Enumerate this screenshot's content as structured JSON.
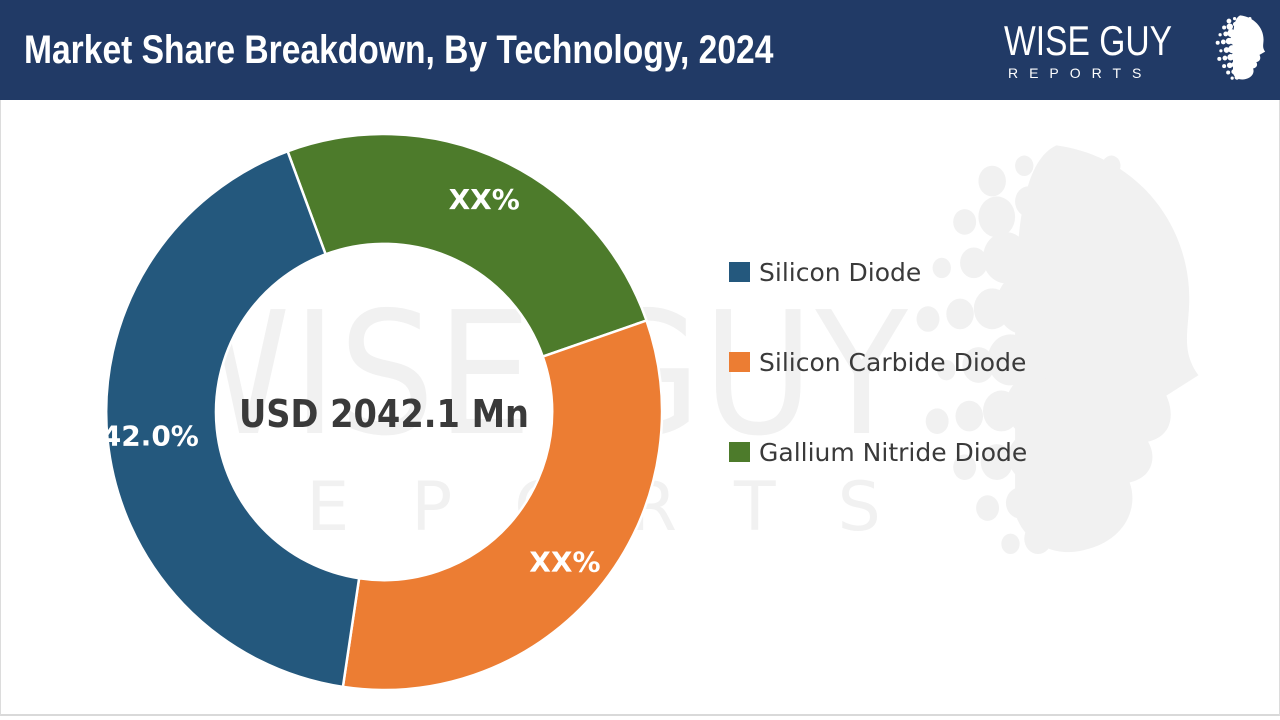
{
  "header": {
    "logo": {
      "line1": "WISE GUY",
      "line2": "REPORTS"
    }
  },
  "watermark": {
    "line1": "WISE GUY",
    "line2": "REPORTS"
  },
  "chart_data": {
    "type": "pie",
    "subtype": "donut",
    "title": "Market Share Breakdown, By Technology, 2024",
    "center_label": "USD 2042.1 Mn",
    "start_angle_deg": 110.3,
    "direction": "clockwise",
    "inner_radius_ratio": 0.605,
    "legend_position": "right",
    "segments": [
      {
        "name": "Gallium Nitride Diode",
        "value_pct": 25.3,
        "display_label": "XX%",
        "color": "#4D7B2B"
      },
      {
        "name": "Silicon Carbide Diode",
        "value_pct": 32.7,
        "display_label": "XX%",
        "color": "#EC7D33"
      },
      {
        "name": "Silicon Diode",
        "value_pct": 42.0,
        "display_label": "42.0%",
        "color": "#24587D"
      }
    ],
    "legend": [
      {
        "label": "Silicon Diode",
        "color": "#24587D"
      },
      {
        "label": "Silicon Carbide Diode",
        "color": "#EC7D33"
      },
      {
        "label": "Gallium Nitride Diode",
        "color": "#4D7B2B"
      }
    ],
    "colors_hex": {
      "header_bg": "#213A66",
      "text_dark": "#3a3a3a",
      "watermark": "#f1f1f1"
    }
  }
}
